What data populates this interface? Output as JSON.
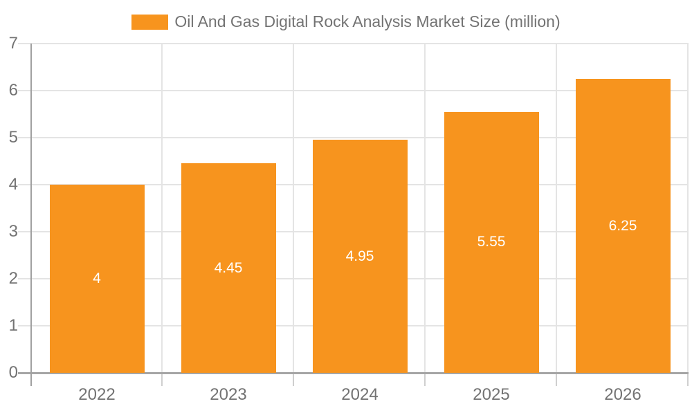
{
  "chart_data": {
    "type": "bar",
    "title": "Oil And Gas Digital Rock Analysis Market Size (million)",
    "legend_position": "top",
    "categories": [
      "2022",
      "2023",
      "2024",
      "2025",
      "2026"
    ],
    "series": [
      {
        "name": "Oil And Gas Digital Rock Analysis Market Size (million)",
        "values": [
          4,
          4.45,
          4.95,
          5.55,
          6.25
        ],
        "value_labels": [
          "4",
          "4.45",
          "4.95",
          "5.55",
          "6.25"
        ]
      }
    ],
    "xlabel": "",
    "ylabel": "",
    "ylim": [
      0,
      7
    ],
    "yticks": [
      "0",
      "1",
      "2",
      "3",
      "4",
      "5",
      "6",
      "7"
    ],
    "grid": true,
    "colors": {
      "bar": "#F7941E",
      "value_label": "#FFFFFF",
      "grid_line": "#E4E4E4",
      "axis_line": "#A0A0A0",
      "tick_text": "#737373"
    }
  }
}
